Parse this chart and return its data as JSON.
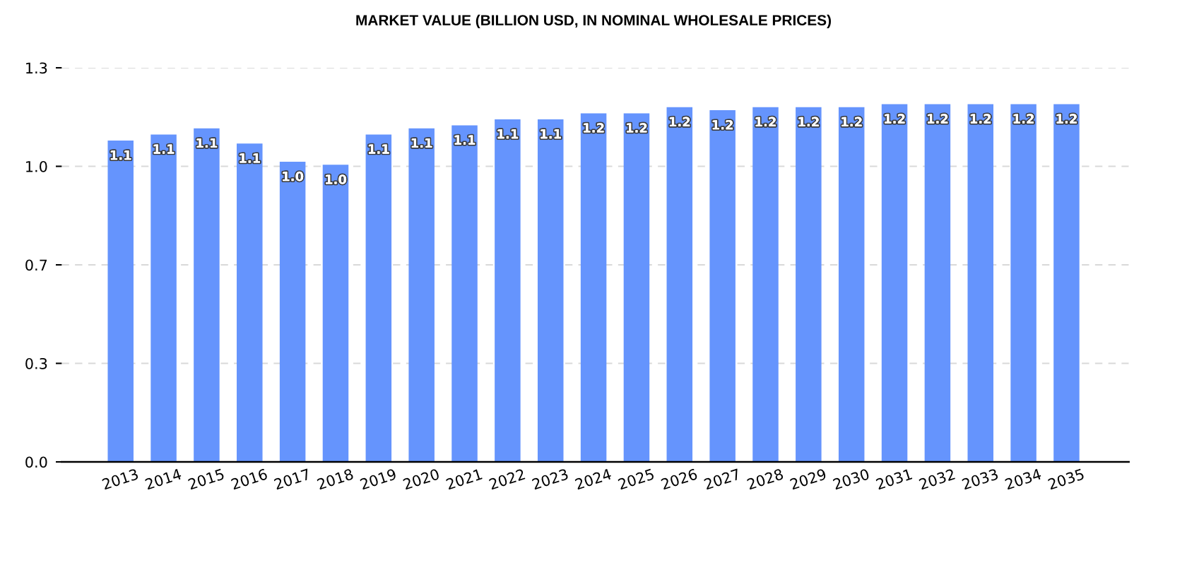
{
  "chart_data": {
    "type": "bar",
    "title": "MARKET VALUE (BILLION USD, IN NOMINAL WHOLESALE PRICES)",
    "categories": [
      "2013",
      "2014",
      "2015",
      "2016",
      "2017",
      "2018",
      "2019",
      "2020",
      "2021",
      "2022",
      "2023",
      "2024",
      "2025",
      "2026",
      "2027",
      "2028",
      "2029",
      "2030",
      "2031",
      "2032",
      "2033",
      "2034",
      "2035"
    ],
    "values": [
      1.06,
      1.08,
      1.1,
      1.05,
      0.99,
      0.98,
      1.08,
      1.1,
      1.11,
      1.13,
      1.13,
      1.15,
      1.15,
      1.17,
      1.16,
      1.17,
      1.17,
      1.17,
      1.18,
      1.18,
      1.18,
      1.18,
      1.18
    ],
    "value_labels": [
      "1.1",
      "1.1",
      "1.1",
      "1.1",
      "1.0",
      "1.0",
      "1.1",
      "1.1",
      "1.1",
      "1.1",
      "1.1",
      "1.2",
      "1.2",
      "1.2",
      "1.2",
      "1.2",
      "1.2",
      "1.2",
      "1.2",
      "1.2",
      "1.2",
      "1.2",
      "1.2"
    ],
    "color": "#6594fd",
    "ylim": [
      0,
      1.3
    ],
    "yticks": [
      {
        "value": 0,
        "label": "0.0"
      },
      {
        "value": 0.325,
        "label": "0.3"
      },
      {
        "value": 0.65,
        "label": "0.7"
      },
      {
        "value": 0.975,
        "label": "1.0"
      },
      1.3
    ],
    "grid": "y"
  }
}
